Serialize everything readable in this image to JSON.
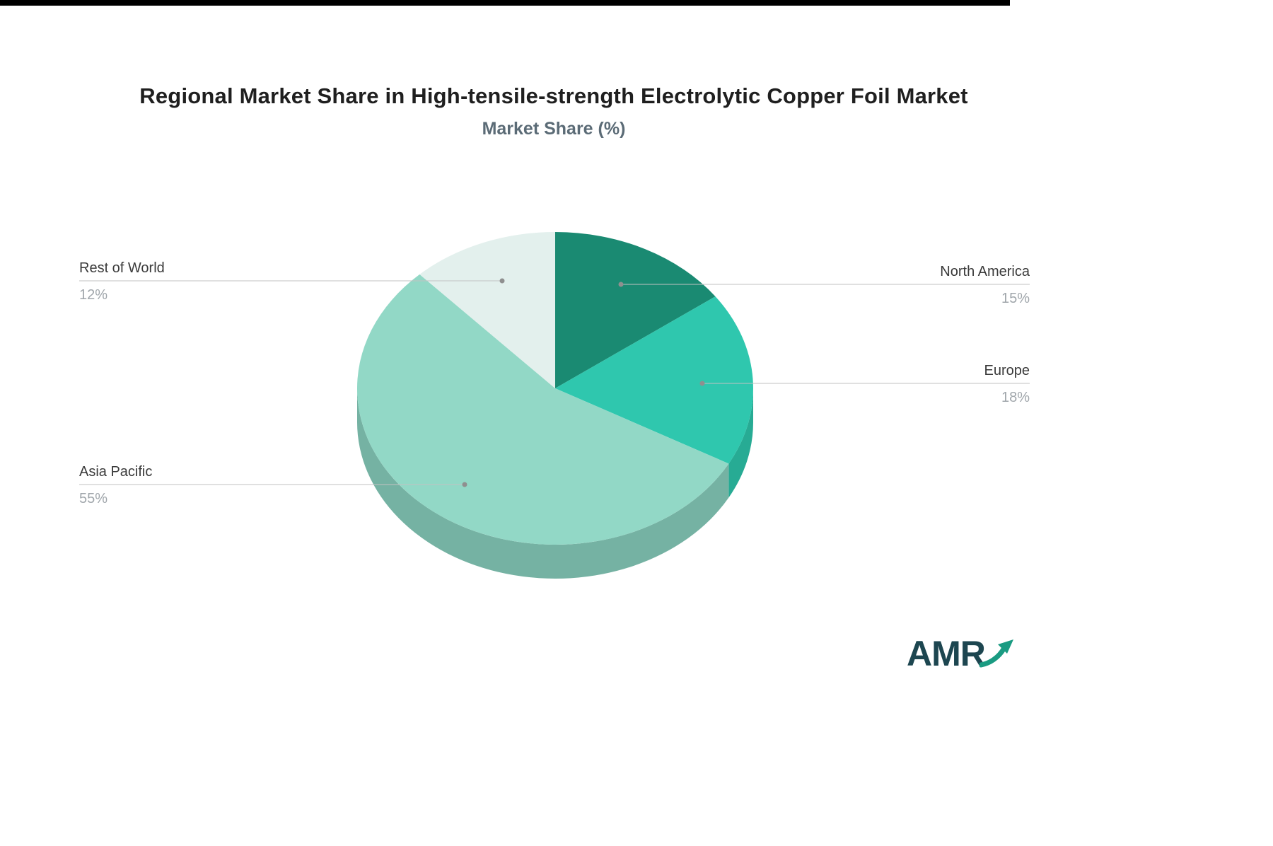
{
  "chart_data": {
    "type": "pie",
    "title": "Regional Market Share in High-tensile-strength Electrolytic Copper Foil Market",
    "subtitle": "Market Share (%)",
    "categories": [
      "North America",
      "Europe",
      "Asia Pacific",
      "Rest of World"
    ],
    "values": [
      15,
      18,
      55,
      12
    ],
    "value_labels": [
      "15%",
      "18%",
      "55%",
      "12%"
    ],
    "colors": [
      "#1a8a72",
      "#2fc7ae",
      "#92d8c6",
      "#e3f0ed"
    ],
    "side_colors": [
      "#11604f",
      "#27ab94",
      "#75b2a3",
      "#c3d9d4"
    ],
    "start_angle_deg": 0,
    "direction": "clockwise",
    "effect_3d": true,
    "legend_position": "none",
    "label_layout": "callout-lines-left-right",
    "leader_line_color": "#c2c2c2",
    "leader_dot_color": "#8f8f8f"
  },
  "branding": {
    "logo_text": "AMR",
    "logo_arrow_color": "#1a9b82",
    "logo_text_color": "#1d4650"
  }
}
